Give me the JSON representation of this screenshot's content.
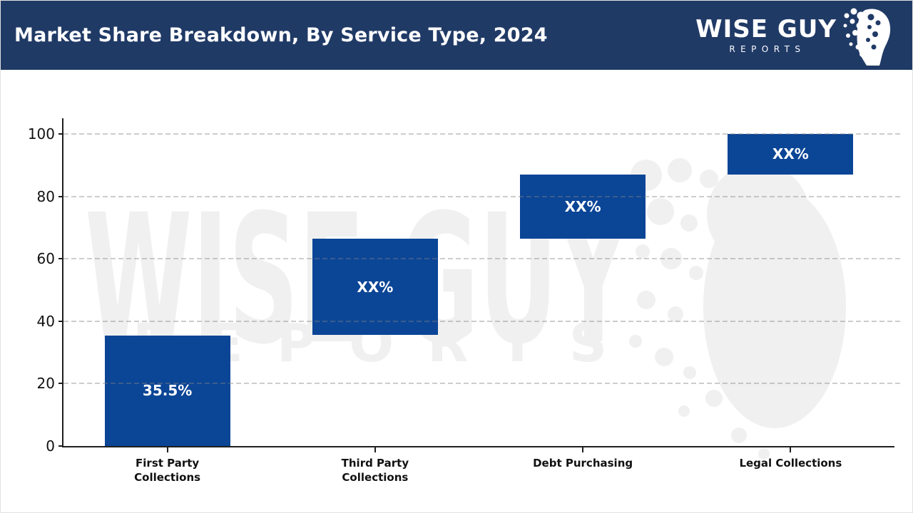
{
  "header": {
    "title": "Market Share Breakdown, By Service Type, 2024",
    "logo": {
      "line1": "WISE GUY",
      "line2": "REPORTS"
    }
  },
  "watermark": {
    "line1": "WISE GUY",
    "line2": "REPORTS"
  },
  "colors": {
    "header_bg": "#203a66",
    "bar": "#0b4596",
    "bar_label": "#ffffff",
    "grid": "rgba(130,130,130,0.40)",
    "axis": "#1f1f1f",
    "tick_label": "#111111",
    "watermark": "#f0f0f0"
  },
  "chart_data": {
    "type": "bar",
    "subtype": "waterfall",
    "title": "Market Share Breakdown, By Service Type, 2024",
    "xlabel": "",
    "ylabel": "",
    "categories": [
      "First Party Collections",
      "Third Party Collections",
      "Debt Purchasing",
      "Legal Collections"
    ],
    "categories_lines": [
      [
        "First Party",
        "Collections"
      ],
      [
        "Third Party",
        "Collections"
      ],
      [
        "Debt Purchasing"
      ],
      [
        "Legal Collections"
      ]
    ],
    "segments": [
      {
        "category": "First Party Collections",
        "start": 0,
        "end": 35.5,
        "label": "35.5%"
      },
      {
        "category": "Third Party Collections",
        "start": 35.5,
        "end": 66.5,
        "label": "XX%"
      },
      {
        "category": "Debt Purchasing",
        "start": 66.5,
        "end": 87,
        "label": "XX%"
      },
      {
        "category": "Legal Collections",
        "start": 87,
        "end": 100,
        "label": "XX%"
      }
    ],
    "yticks": [
      0,
      20,
      40,
      60,
      80,
      100
    ],
    "ylim": [
      0,
      105
    ],
    "grid": "dashed-horizontal",
    "legend": "none"
  }
}
